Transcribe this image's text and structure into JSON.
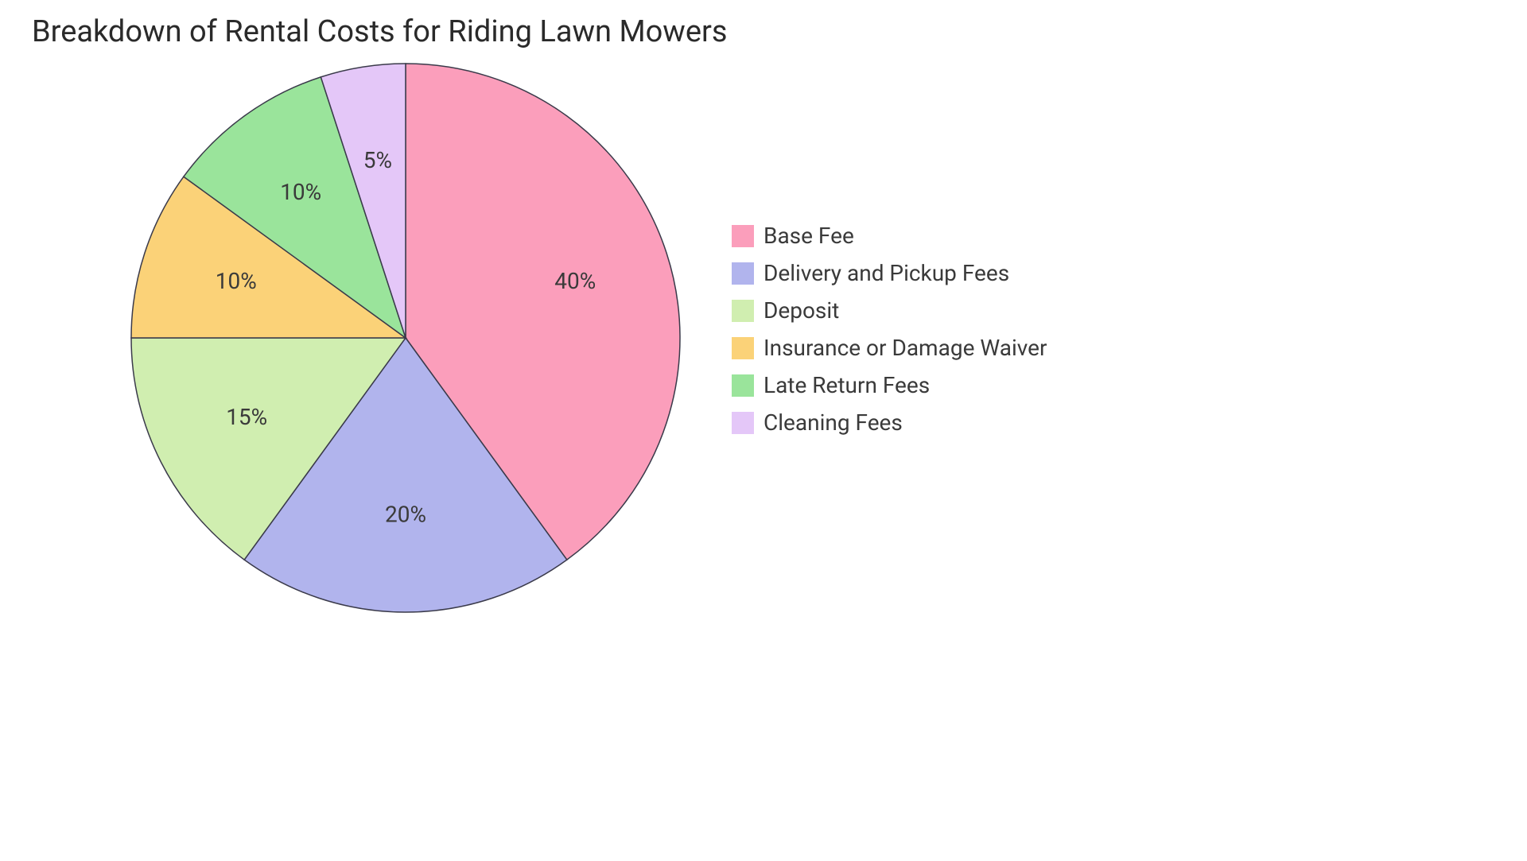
{
  "chart": {
    "type": "pie",
    "title": "Breakdown of Rental Costs for Riding Lawn Mowers",
    "title_fontsize": 38,
    "title_color": "#2a2a2a",
    "background_color": "#ffffff",
    "stroke_color": "#3a3a4a",
    "stroke_width": 1.5,
    "label_fontsize": 28,
    "label_color": "#3a3a3a",
    "legend_fontsize": 28,
    "legend_swatch_size": 28,
    "slices": [
      {
        "label": "Base Fee",
        "value": 40,
        "pct_label": "40%",
        "color": "#fb9ebb"
      },
      {
        "label": "Delivery and Pickup Fees",
        "value": 20,
        "pct_label": "20%",
        "color": "#b1b4ed"
      },
      {
        "label": "Deposit",
        "value": 15,
        "pct_label": "15%",
        "color": "#d0eeb0"
      },
      {
        "label": "Insurance or Damage Waiver",
        "value": 10,
        "pct_label": "10%",
        "color": "#fbd278"
      },
      {
        "label": "Late Return Fees",
        "value": 10,
        "pct_label": "10%",
        "color": "#9ae49b"
      },
      {
        "label": "Cleaning Fees",
        "value": 5,
        "pct_label": "5%",
        "color": "#e4c7f8"
      }
    ],
    "radius": 345,
    "label_radius_factor": 0.65,
    "start_angle_deg": -90
  }
}
